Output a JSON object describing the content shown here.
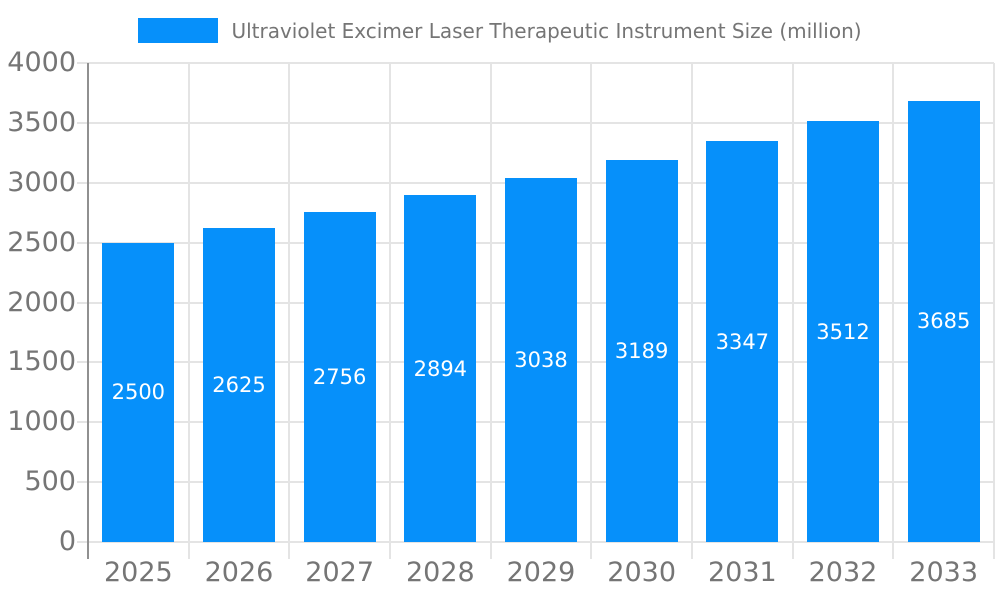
{
  "legend": {
    "label": "Ultraviolet Excimer Laser Therapeutic Instrument Size (million)"
  },
  "colors": {
    "bar": "#0690fa",
    "grid": "#e4e4e4",
    "axis_line": "#909090",
    "tick_label": "#757575",
    "legend_text": "#757575",
    "value_label": "#ffffff",
    "background": "#ffffff"
  },
  "chart_data": {
    "type": "bar",
    "title": "Ultraviolet Excimer Laser Therapeutic Instrument Size (million)",
    "categories": [
      "2025",
      "2026",
      "2027",
      "2028",
      "2029",
      "2030",
      "2031",
      "2032",
      "2033"
    ],
    "values": [
      2500,
      2625,
      2756,
      2894,
      3038,
      3189,
      3347,
      3512,
      3685
    ],
    "xlabel": "",
    "ylabel": "",
    "ylim": [
      0,
      4000
    ],
    "ytick_step": 500,
    "yticks": [
      0,
      500,
      1000,
      1500,
      2000,
      2500,
      3000,
      3500,
      4000
    ],
    "grid": true,
    "legend_position": "top",
    "value_label_position": "inside-middle",
    "bar_color": "#0690fa"
  }
}
